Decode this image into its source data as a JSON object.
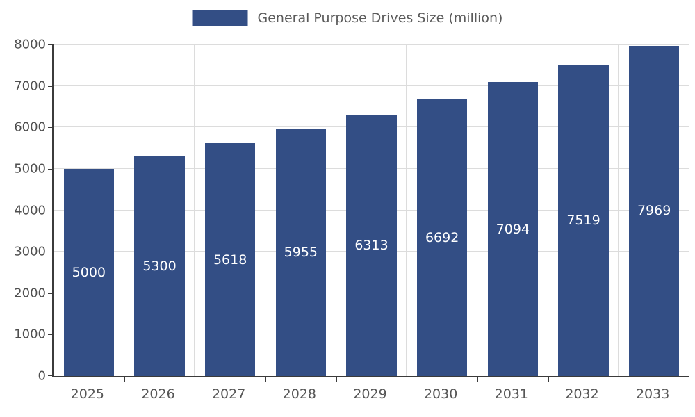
{
  "legend": {
    "label": "General Purpose Drives Size (million)",
    "swatch_color": "#334e85"
  },
  "chart_data": {
    "type": "bar",
    "title": "General Purpose Drives Size (million)",
    "categories": [
      "2025",
      "2026",
      "2027",
      "2028",
      "2029",
      "2030",
      "2031",
      "2032",
      "2033"
    ],
    "values": [
      5000,
      5300,
      5618,
      5955,
      6313,
      6692,
      7094,
      7519,
      7969
    ],
    "xlabel": "",
    "ylabel": "",
    "ylim": [
      0,
      8000
    ],
    "ytick_interval": 1000,
    "ytick_labels": [
      "0",
      "1000",
      "2000",
      "3000",
      "4000",
      "5000",
      "6000",
      "7000",
      "8000"
    ],
    "grid": true,
    "legend_position": "top-center",
    "bar_color": "#334e85",
    "value_label_color": "#ffffff",
    "bar_width_ratio": 0.71
  }
}
